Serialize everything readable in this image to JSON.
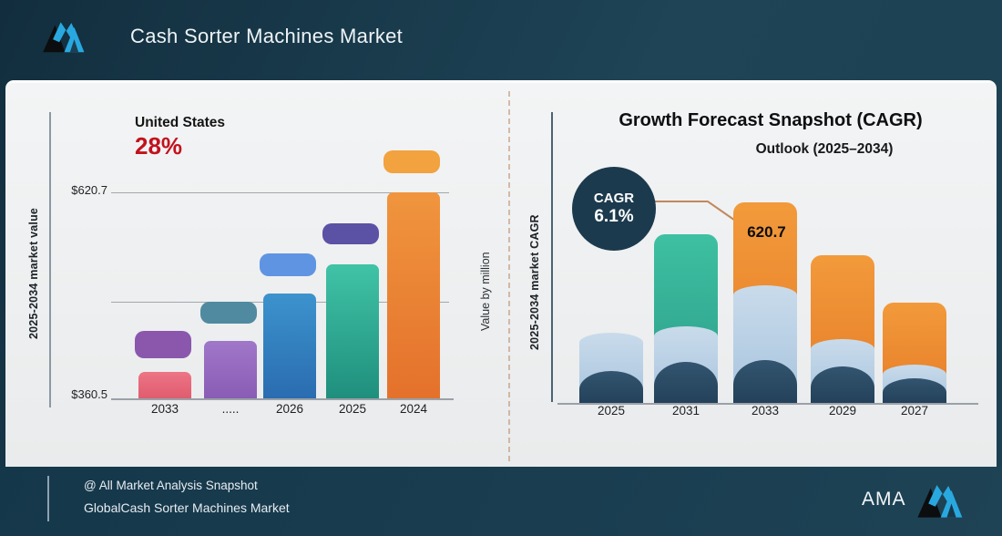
{
  "header": {
    "title": "Cash Sorter Machines Market"
  },
  "footer": {
    "credit": "@ All Market Analysis Snapshot",
    "source": "GlobalCash Sorter Machines Market",
    "brand": "AMA"
  },
  "colors": {
    "header_bg": "#1d4254",
    "panel_bg": "#ededee",
    "accent_red": "#c2121d",
    "callout_bg": "#1c3a4e",
    "connector": "#c0895e",
    "logo_blue": "#29a8e0"
  },
  "chart_data": [
    {
      "type": "bar",
      "region": "United States",
      "region_growth": "28%",
      "ylabel": "2025-2034 market value",
      "ylabel_secondary": "Value by million",
      "categories": [
        "2033",
        ".....",
        "2026",
        "2025",
        "2024"
      ],
      "values": [
        394,
        433,
        493,
        530,
        620.7
      ],
      "cap_segments": [
        [
          411,
          446
        ],
        [
          455,
          482
        ],
        [
          515,
          543
        ],
        [
          555,
          582
        ],
        [
          645,
          674
        ]
      ],
      "bar_colors": [
        [
          "#ec7586",
          "#e05c6e"
        ],
        [
          "#a077c9",
          "#8a5cb5"
        ],
        [
          "#3c93cd",
          "#2a6cb0"
        ],
        [
          "#40c3a6",
          "#1f8f7d"
        ],
        [
          "#f0953e",
          "#e4712b"
        ]
      ],
      "cap_colors": [
        "#8a57ad",
        "#4f8aa0",
        "#5f94e2",
        "#5b51a5",
        "#f2a23e"
      ],
      "ylim": [
        360.5,
        680
      ],
      "yticks": [
        360.5,
        620.7
      ],
      "ytick_labels": [
        "$360.5",
        "$620.7"
      ],
      "gridline_values": [
        620.7,
        483
      ],
      "values_note": "only $360.5 and $620.7 labeled on axis; bar and cap values estimated from heights"
    },
    {
      "type": "stacked-bar",
      "title": "Growth Forecast Snapshot (CAGR)",
      "subtitle": "Outlook (2025–2034)",
      "ylabel": "2025-2034 market CAGR",
      "callout": {
        "label": "CAGR",
        "value": "6.1%"
      },
      "peak_label": "620.7",
      "peak_category": "2033",
      "categories": [
        "2025",
        "2031",
        "2033",
        "2029",
        "2027"
      ],
      "series": [
        {
          "name": "base",
          "values": [
            35,
            45,
            47,
            40,
            27
          ],
          "colors": [
            "#33556f",
            "#24415a"
          ]
        },
        {
          "name": "mid",
          "values": [
            42,
            39,
            82,
            30,
            15
          ],
          "colors": [
            "#c9dbeb",
            "#a8c4de"
          ]
        },
        {
          "name": "top",
          "values": [
            0,
            101,
            91,
            92,
            68
          ],
          "segment_colors": [
            null,
            [
              "#3ec0a2",
              "#2b9c87"
            ],
            [
              "#f29a3b",
              "#e67c28"
            ],
            [
              "#f29a3b",
              "#e67c28"
            ],
            [
              "#f29a3b",
              "#e67c28"
            ]
          ]
        }
      ],
      "units": "relative height (no numeric axis shown)"
    }
  ]
}
